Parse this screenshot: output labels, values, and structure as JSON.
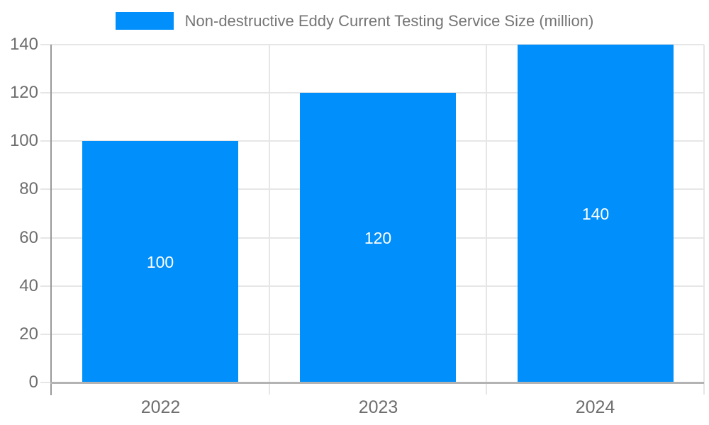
{
  "legend": {
    "series_label": "Non-destructive Eddy Current Testing Service Size (million)"
  },
  "chart_data": {
    "type": "bar",
    "title": "Non-destructive Eddy Current Testing Service Size (million)",
    "categories": [
      "2022",
      "2023",
      "2024"
    ],
    "values": [
      100,
      120,
      140
    ],
    "bar_labels": [
      "100",
      "120",
      "140"
    ],
    "ytick_labels": [
      "0",
      "20",
      "40",
      "60",
      "80",
      "100",
      "120",
      "140"
    ],
    "ytick_values": [
      0,
      20,
      40,
      60,
      80,
      100,
      120,
      140
    ],
    "xlabel": "",
    "ylabel": "",
    "ylim": [
      0,
      140
    ],
    "grid": true,
    "legend_position": "top"
  },
  "colors": {
    "bar": "#008ffb",
    "bar_label": "#ffffff",
    "legend_text": "#757575",
    "tick_text": "#6e6e6e",
    "gridline": "#e6e6e6",
    "y_axis_line": "#999999",
    "x_axis_line": "#b3b3b3"
  }
}
